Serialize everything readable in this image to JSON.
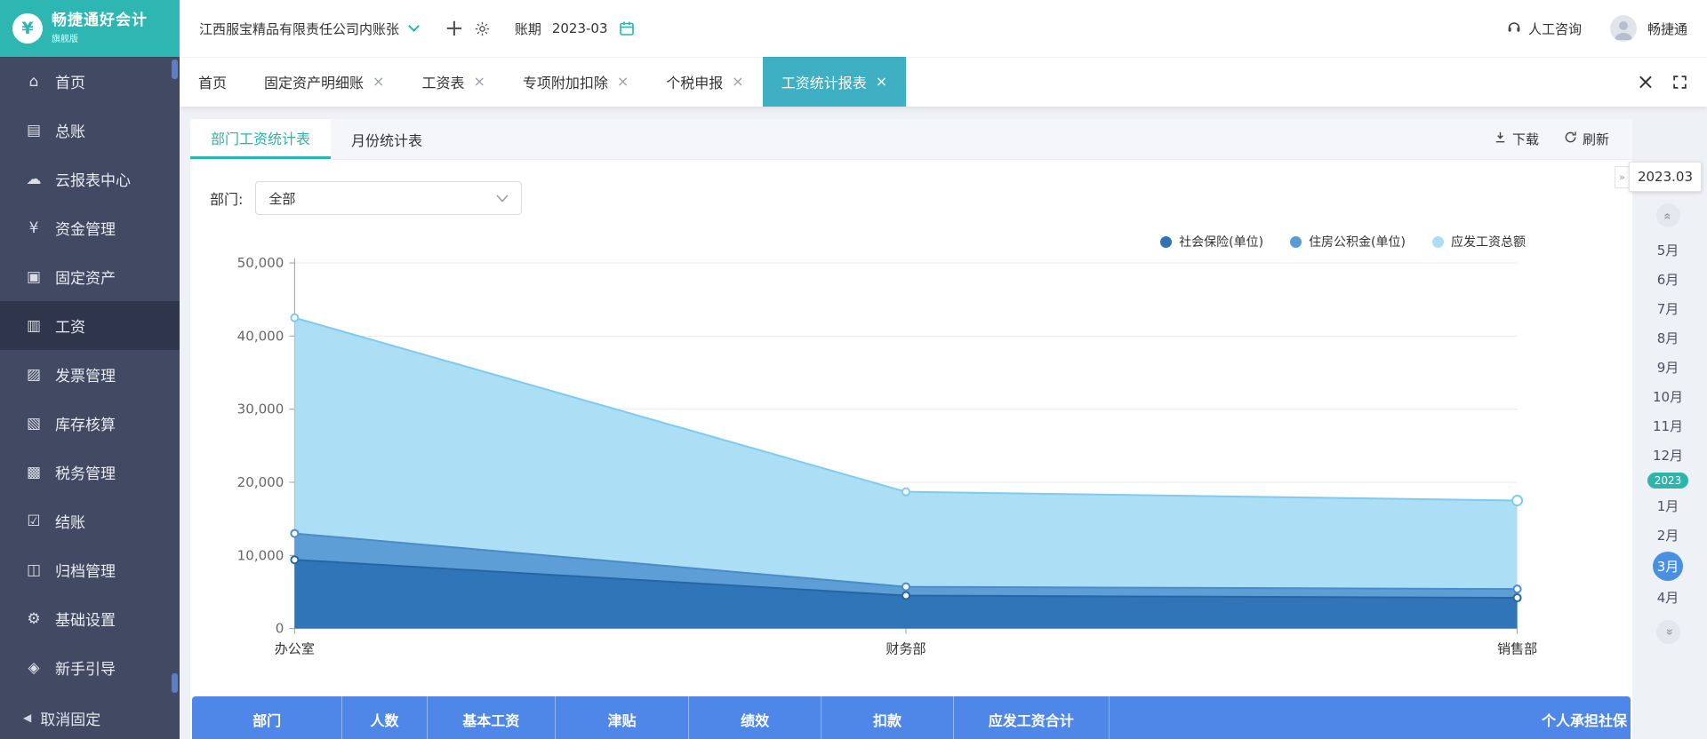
{
  "brand": {
    "name": "畅捷通好会计",
    "edition": "旗舰版",
    "logo_glyph": "¥"
  },
  "header": {
    "company": "江西服宝精品有限责任公司内账张",
    "plus_glyph": "+",
    "period_label": "账期",
    "period_value": "2023-03",
    "support_label": "人工咨询",
    "user_name": "畅捷通"
  },
  "sidebar": {
    "active_index": 5,
    "items": [
      {
        "label": "首页",
        "icon": "home-icon",
        "glyph": "⌂"
      },
      {
        "label": "总账",
        "icon": "ledger-icon",
        "glyph": "▤"
      },
      {
        "label": "云报表中心",
        "icon": "cloud-report-icon",
        "glyph": "☁"
      },
      {
        "label": "资金管理",
        "icon": "funds-icon",
        "glyph": "¥"
      },
      {
        "label": "固定资产",
        "icon": "fixed-assets-icon",
        "glyph": "▣"
      },
      {
        "label": "工资",
        "icon": "salary-icon",
        "glyph": "▥"
      },
      {
        "label": "发票管理",
        "icon": "invoice-icon",
        "glyph": "▨"
      },
      {
        "label": "库存核算",
        "icon": "inventory-icon",
        "glyph": "▧"
      },
      {
        "label": "税务管理",
        "icon": "tax-icon",
        "glyph": "▩"
      },
      {
        "label": "结账",
        "icon": "closing-icon",
        "glyph": "☑"
      },
      {
        "label": "归档管理",
        "icon": "archive-icon",
        "glyph": "◫"
      },
      {
        "label": "基础设置",
        "icon": "settings-icon",
        "glyph": "⚙"
      },
      {
        "label": "新手引导",
        "icon": "guide-icon",
        "glyph": "◈"
      }
    ],
    "unpin_label": "取消固定",
    "unpin_glyph": "◀"
  },
  "tabs": {
    "active_index": 5,
    "close_glyph": "×",
    "items": [
      {
        "label": "首页",
        "closable": false
      },
      {
        "label": "固定资产明细账",
        "closable": true
      },
      {
        "label": "工资表",
        "closable": true
      },
      {
        "label": "专项附加扣除",
        "closable": true
      },
      {
        "label": "个税申报",
        "closable": true
      },
      {
        "label": "工资统计报表",
        "closable": true
      }
    ]
  },
  "subtabs": {
    "active_index": 0,
    "items": [
      "部门工资统计表",
      "月份统计表"
    ]
  },
  "toolbar": {
    "download_label": "下载",
    "refresh_label": "刷新"
  },
  "filter": {
    "label": "部门:",
    "value": "全部"
  },
  "chart_data": {
    "type": "area",
    "categories": [
      "办公室",
      "财务部",
      "销售部"
    ],
    "series": [
      {
        "name": "社会保险(单位)",
        "color": "#2e74b5",
        "stroke": "#2766a4",
        "values": [
          9400,
          4500,
          4200
        ]
      },
      {
        "name": "住房公积金(单位)",
        "color": "#5b9bd5",
        "stroke": "#4b8cc8",
        "values": [
          13000,
          5700,
          5400
        ]
      },
      {
        "name": "应发工资总额",
        "color": "#a9def6",
        "stroke": "#7fcaef",
        "values": [
          42500,
          18700,
          17500
        ]
      }
    ],
    "ylim": [
      0,
      50000
    ],
    "yticks": [
      0,
      10000,
      20000,
      30000,
      40000,
      50000
    ],
    "legend_position": "top-right",
    "grid": true
  },
  "table": {
    "columns": [
      "部门",
      "人数",
      "基本工资",
      "津贴",
      "绩效",
      "扣款",
      "应发工资合计",
      "个人承担社保"
    ]
  },
  "month_panel": {
    "current": "2023.03",
    "collapse_glyph": "»",
    "scroll_glyph": "«",
    "months": [
      "5月",
      "6月",
      "7月",
      "8月",
      "9月",
      "10月",
      "11月",
      "12月",
      "1月",
      "2月",
      "3月",
      "4月"
    ],
    "year_badge": "2023",
    "year_badge_after": "12月",
    "selected": "3月"
  },
  "colors": {
    "brand": "#2eb6b3",
    "activeTab": "#3fb0c4",
    "sidebar": "#424a63",
    "sidebarActive": "#2f364b",
    "tableHeader": "#4f87e8",
    "tealText": "#2bb3ae",
    "monthSel": "#4a90e2",
    "badge": "#2db5ac",
    "pageBg": "#eef1f5"
  }
}
